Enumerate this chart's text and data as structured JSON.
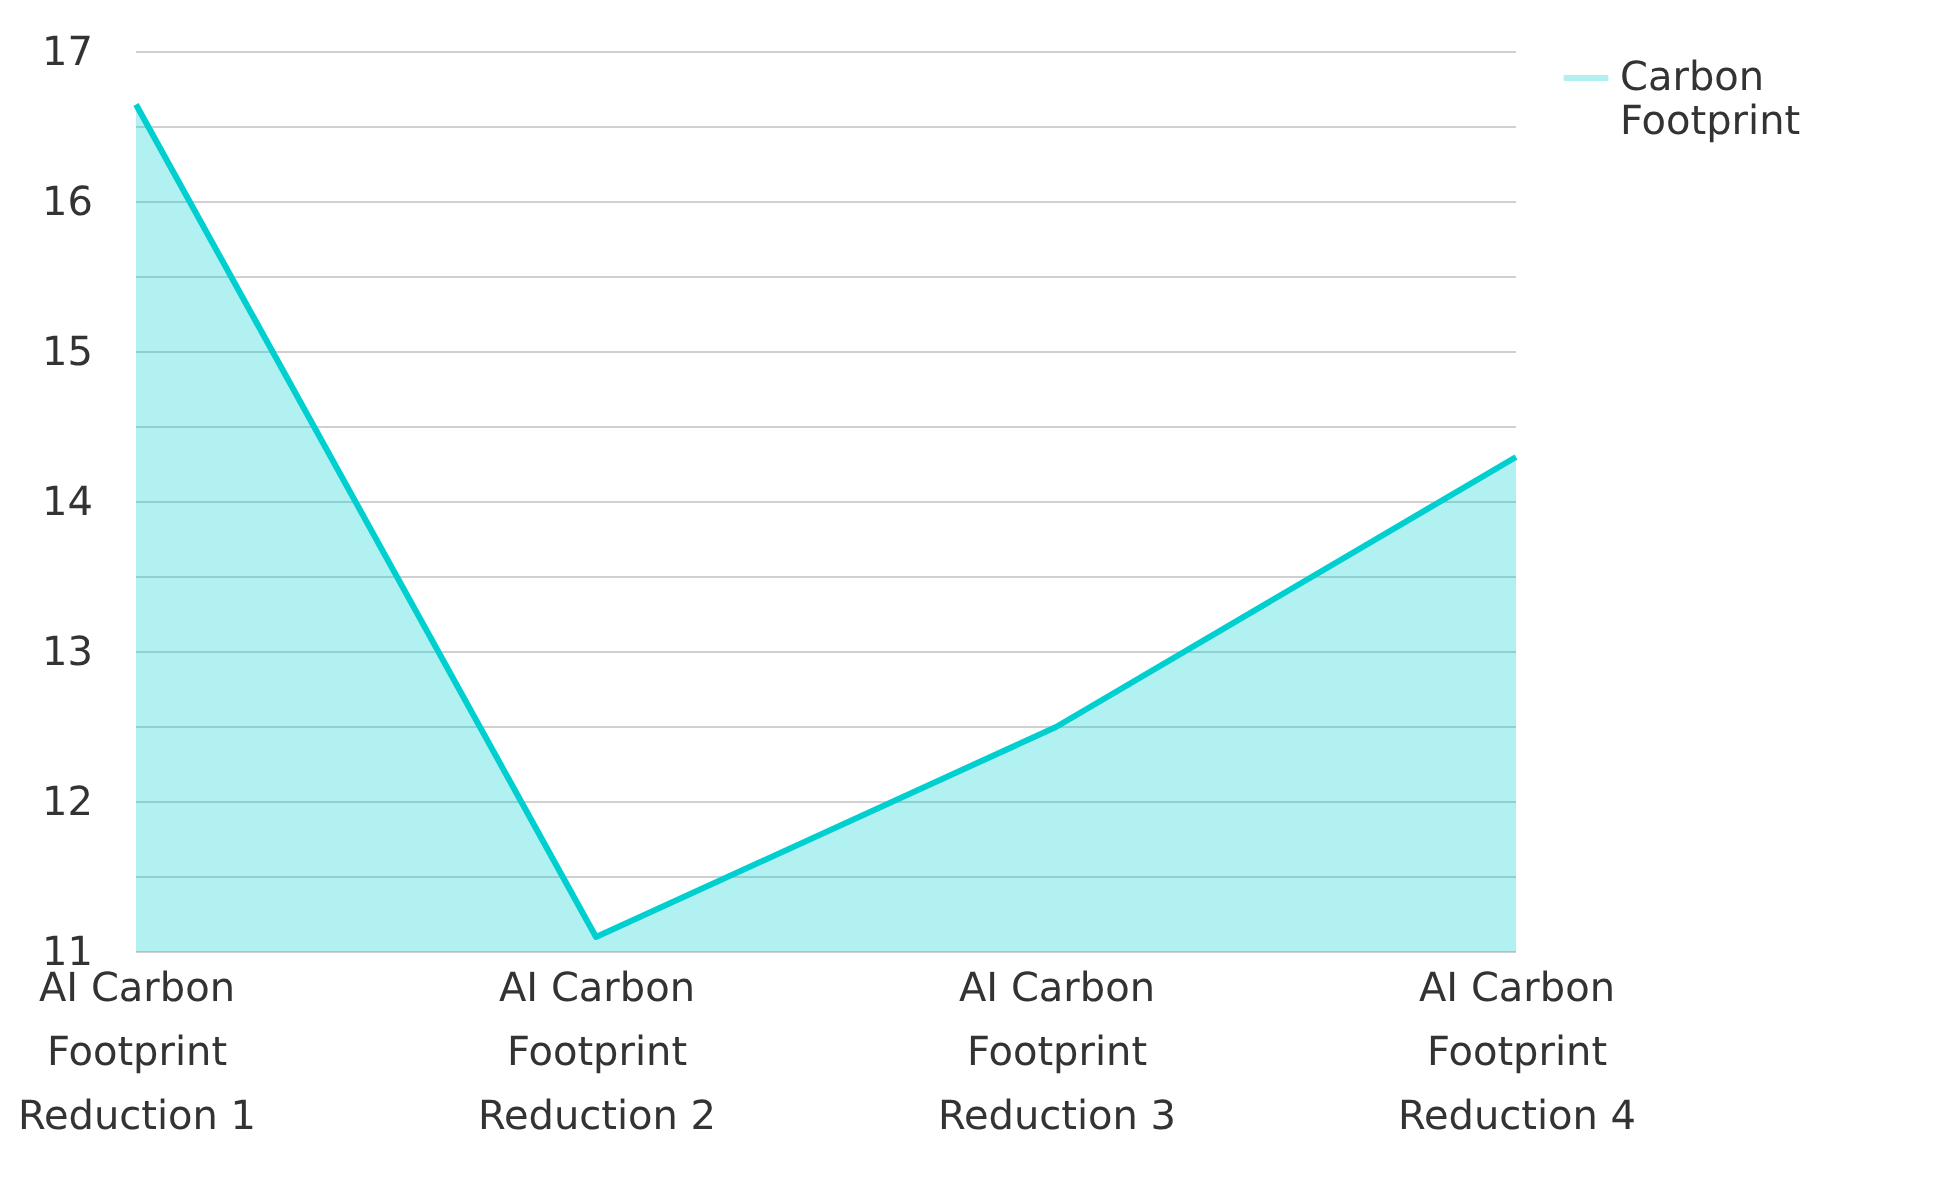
{
  "chart_data": {
    "type": "area",
    "categories": [
      "AI Carbon Footprint Reduction 1",
      "AI Carbon Footprint Reduction 2",
      "AI Carbon Footprint Reduction 3",
      "AI Carbon Footprint Reduction 4"
    ],
    "series": [
      {
        "name": "Carbon Footprint",
        "color": "#00cfcf",
        "values": [
          16.65,
          11.1,
          12.5,
          14.3
        ]
      }
    ],
    "ylim": [
      11,
      17
    ],
    "yticks": [
      11,
      {
        "value": 11.5,
        "label": null
      },
      12,
      {
        "value": 12.5,
        "label": null
      },
      13,
      {
        "value": 13.5,
        "label": null
      },
      14,
      {
        "value": 14.5,
        "label": null
      },
      15,
      {
        "value": 15.5,
        "label": null
      },
      16,
      {
        "value": 16.5,
        "label": null
      },
      17
    ],
    "grid": true,
    "legend": "top right"
  }
}
